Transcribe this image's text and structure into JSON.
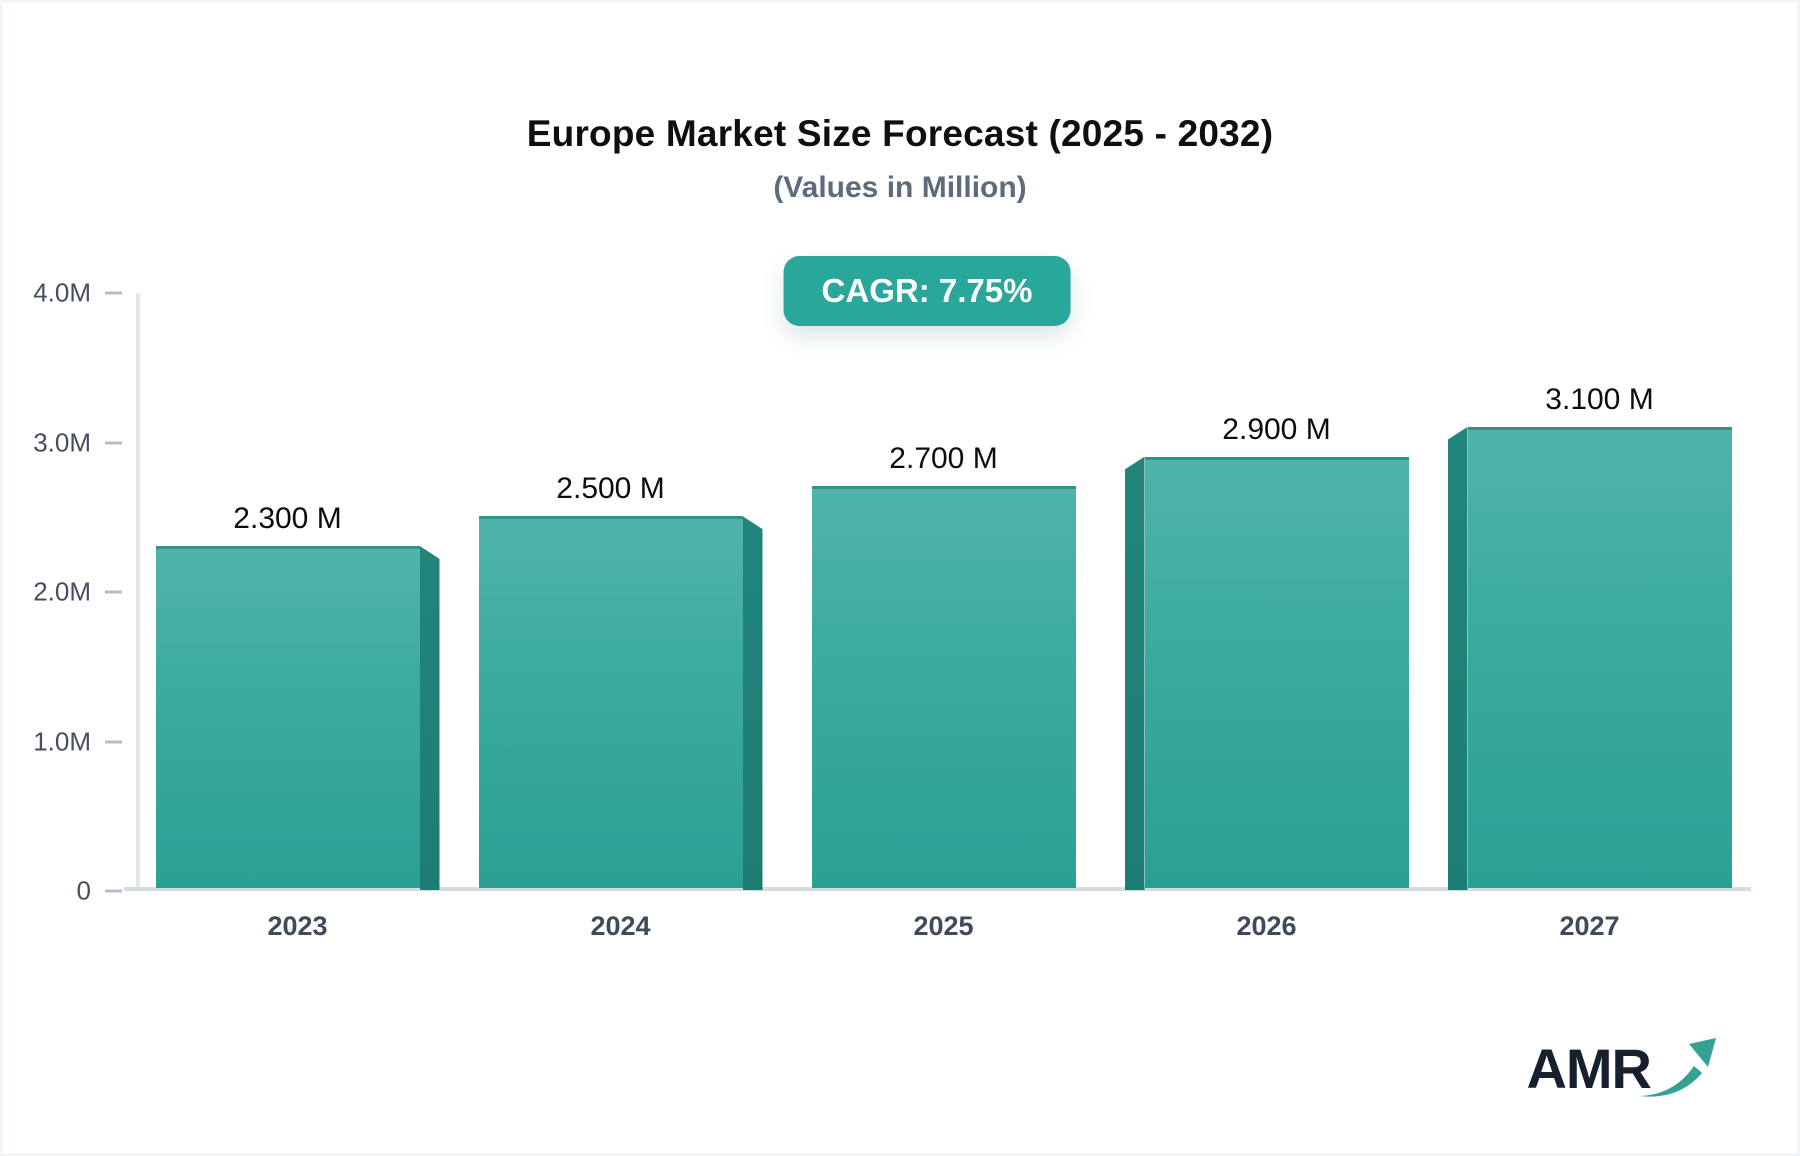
{
  "header": {
    "title": "Europe Market Size Forecast (2025 - 2032)",
    "subtitle": "(Values in Million)"
  },
  "badge": {
    "label": "CAGR: 7.75%",
    "bg_color": "#2aa79b",
    "text_color": "#ffffff"
  },
  "logo": {
    "text": "AMR",
    "arrow_icon": "trend-up-arrow",
    "text_color": "#16212d",
    "arrow_color": "#33a294"
  },
  "chart_data": {
    "type": "bar",
    "title": "Europe Market Size Forecast (2025 - 2032)",
    "subtitle": "(Values in Million)",
    "unit": "Million",
    "xlabel": "",
    "ylabel": "",
    "categories": [
      "2023",
      "2024",
      "2025",
      "2026",
      "2027"
    ],
    "values": [
      2.3,
      2.5,
      2.7,
      2.9,
      3.1
    ],
    "value_labels": [
      "2.300 M",
      "2.500 M",
      "2.700 M",
      "2.900 M",
      "3.100 M"
    ],
    "ylim": [
      0,
      4.0
    ],
    "y_ticks": [
      {
        "value": 4.0,
        "label": "4.0M"
      },
      {
        "value": 3.0,
        "label": "3.0M"
      },
      {
        "value": 2.0,
        "label": "2.0M"
      },
      {
        "value": 1.0,
        "label": "1.0M"
      },
      {
        "value": 0,
        "label": "0"
      }
    ],
    "grid": false,
    "legend": false,
    "bar_3d_side": [
      "right",
      "right",
      "none",
      "left",
      "left"
    ],
    "bar_color_top": "#4fb4aa",
    "bar_color_bottom": "#2aa093",
    "bar_side_color": "#1e7d73",
    "cagr": "7.75%"
  }
}
